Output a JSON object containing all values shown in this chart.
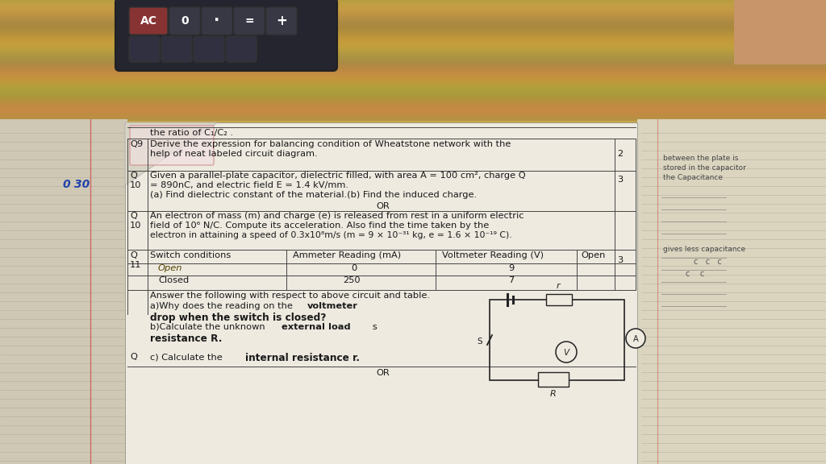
{
  "bg_wood_color": "#c8a84b",
  "bg_wood_color2": "#b89535",
  "paper_color": "#eeeae0",
  "paper_left_color": "#e8e4d8",
  "right_page_color": "#ddd8c8",
  "left_notebook_color": "#d0c8b8",
  "table_line_color": "#555555",
  "text_color": "#1a1a1a",
  "margin_line_color": "#cc4444",
  "title_above": "the ratio of C₁/C₂ .",
  "q9_num": "Q9",
  "q9_text1": "Derive the expression for balancing condition of Wheatstone network with the",
  "q9_text2": "help of neat labeled circuit diagram.",
  "q9_marks": "2",
  "q10_num1": "Q",
  "q10_num2": "10",
  "q10_text1": "Given a parallel-plate capacitor, dielectric filled, with area A = 100 cm², charge Q",
  "q10_text2": "= 890nC, and electric field E = 1.4 kV/mm.",
  "q10_text3": "(a) Find dielectric constant of the material.(b) Find the induced charge.",
  "q10_or": "OR",
  "q10_marks": "3",
  "q10b_num1": "Q",
  "q10b_num2": "10",
  "q10b_text1": "An electron of mass (m) and charge (e) is released from rest in a uniform electric",
  "q10b_text2": "field of 10⁶ N/C. Compute its acceleration. Also find the time taken by the",
  "q10b_text3": "electron in attaining a speed of 0.3x10⁸m/s (m = 9 × 10⁻³¹ kg, e = 1.6 × 10⁻¹⁹ C).",
  "q11_num1": "Q",
  "q11_num2": "11",
  "q11_marks": "3",
  "col_header1": "Switch conditions",
  "col_header2": "Ammeter Reading (mA)",
  "col_header3": "Voltmeter Reading (V)",
  "col_header4": "Open",
  "row1_col1": "Open",
  "row1_col2": "0",
  "row1_col3": "9",
  "row2_col1": "Closed",
  "row2_col2": "250",
  "row2_col3": "7",
  "ans_intro": "Answer the following with respect to above circuit and table.",
  "ans_a1": "a)Why does the reading on the ",
  "ans_a1_bold": "voltmeter",
  "ans_a2_bold": "drop when the switch is closed?",
  "ans_b1": "b)Calculate the unknown ",
  "ans_b1_bold": "external load",
  "ans_b1_s": "   s",
  "ans_b2_bold": "resistance R.",
  "ans_c_q": "Q",
  "ans_c1": "c) Calculate the ",
  "ans_c1_bold": "internal resistance r.",
  "ans_or": "OR",
  "margin_text": "0 30",
  "right_text1": "between the plate is",
  "right_text2": "stored in the capacitor",
  "right_text3": "the Capacitance",
  "right_text4": "gives less capacitance"
}
